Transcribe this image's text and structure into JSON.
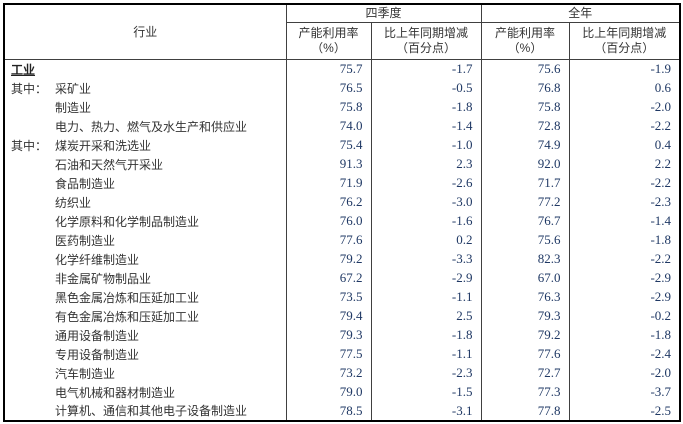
{
  "page": {
    "background": "#ffffff",
    "outer_border_color": "#000000",
    "grid_color": "#404040",
    "label_color": "#333333",
    "number_color": "#1f3864"
  },
  "table": {
    "industry_header": "行业",
    "groups": [
      {
        "label": "四季度"
      },
      {
        "label": "全年"
      }
    ],
    "subheaders": [
      {
        "line1": "产能利用率",
        "line2": "（%）"
      },
      {
        "line1": "比上年同期增减",
        "line2": "（百分点）"
      },
      {
        "line1": "产能利用率",
        "line2": "（%）"
      },
      {
        "line1": "比上年同期增减",
        "line2": "（百分点）"
      }
    ],
    "rows": [
      {
        "prefix": "",
        "indent": false,
        "emphasis": true,
        "label": "工业",
        "values": [
          "75.7",
          "-1.7",
          "75.6",
          "-1.9"
        ]
      },
      {
        "prefix": "其中：",
        "indent": false,
        "emphasis": false,
        "label": "采矿业",
        "values": [
          "76.5",
          "-0.5",
          "76.8",
          "0.6"
        ]
      },
      {
        "prefix": "",
        "indent": true,
        "emphasis": false,
        "label": "制造业",
        "values": [
          "75.8",
          "-1.8",
          "75.8",
          "-2.0"
        ]
      },
      {
        "prefix": "",
        "indent": true,
        "emphasis": false,
        "label": "电力、热力、燃气及水生产和供应业",
        "values": [
          "74.0",
          "-1.4",
          "72.8",
          "-2.2"
        ]
      },
      {
        "prefix": "其中：",
        "indent": false,
        "emphasis": false,
        "label": "煤炭开采和洗选业",
        "values": [
          "75.4",
          "-1.0",
          "74.9",
          "0.4"
        ]
      },
      {
        "prefix": "",
        "indent": true,
        "emphasis": false,
        "label": "石油和天然气开采业",
        "values": [
          "91.3",
          "2.3",
          "92.0",
          "2.2"
        ]
      },
      {
        "prefix": "",
        "indent": true,
        "emphasis": false,
        "label": "食品制造业",
        "values": [
          "71.9",
          "-2.6",
          "71.7",
          "-2.2"
        ]
      },
      {
        "prefix": "",
        "indent": true,
        "emphasis": false,
        "label": "纺织业",
        "values": [
          "76.2",
          "-3.0",
          "77.2",
          "-2.3"
        ]
      },
      {
        "prefix": "",
        "indent": true,
        "emphasis": false,
        "label": "化学原料和化学制品制造业",
        "values": [
          "76.0",
          "-1.6",
          "76.7",
          "-1.4"
        ]
      },
      {
        "prefix": "",
        "indent": true,
        "emphasis": false,
        "label": "医药制造业",
        "values": [
          "77.6",
          "0.2",
          "75.6",
          "-1.8"
        ]
      },
      {
        "prefix": "",
        "indent": true,
        "emphasis": false,
        "label": "化学纤维制造业",
        "values": [
          "79.2",
          "-3.3",
          "82.3",
          "-2.2"
        ]
      },
      {
        "prefix": "",
        "indent": true,
        "emphasis": false,
        "label": "非金属矿物制品业",
        "values": [
          "67.2",
          "-2.9",
          "67.0",
          "-2.9"
        ]
      },
      {
        "prefix": "",
        "indent": true,
        "emphasis": false,
        "label": "黑色金属冶炼和压延加工业",
        "values": [
          "73.5",
          "-1.1",
          "76.3",
          "-2.9"
        ]
      },
      {
        "prefix": "",
        "indent": true,
        "emphasis": false,
        "label": "有色金属冶炼和压延加工业",
        "values": [
          "79.4",
          "2.5",
          "79.3",
          "-0.2"
        ]
      },
      {
        "prefix": "",
        "indent": true,
        "emphasis": false,
        "label": "通用设备制造业",
        "values": [
          "79.3",
          "-1.8",
          "79.2",
          "-1.8"
        ]
      },
      {
        "prefix": "",
        "indent": true,
        "emphasis": false,
        "label": "专用设备制造业",
        "values": [
          "77.5",
          "-1.1",
          "77.6",
          "-2.4"
        ]
      },
      {
        "prefix": "",
        "indent": true,
        "emphasis": false,
        "label": "汽车制造业",
        "values": [
          "73.2",
          "-2.3",
          "72.7",
          "-2.0"
        ]
      },
      {
        "prefix": "",
        "indent": true,
        "emphasis": false,
        "label": "电气机械和器材制造业",
        "values": [
          "79.0",
          "-1.5",
          "77.3",
          "-3.7"
        ]
      },
      {
        "prefix": "",
        "indent": true,
        "emphasis": false,
        "label": "计算机、通信和其他电子设备制造业",
        "values": [
          "78.5",
          "-3.1",
          "77.8",
          "-2.5"
        ]
      }
    ]
  }
}
